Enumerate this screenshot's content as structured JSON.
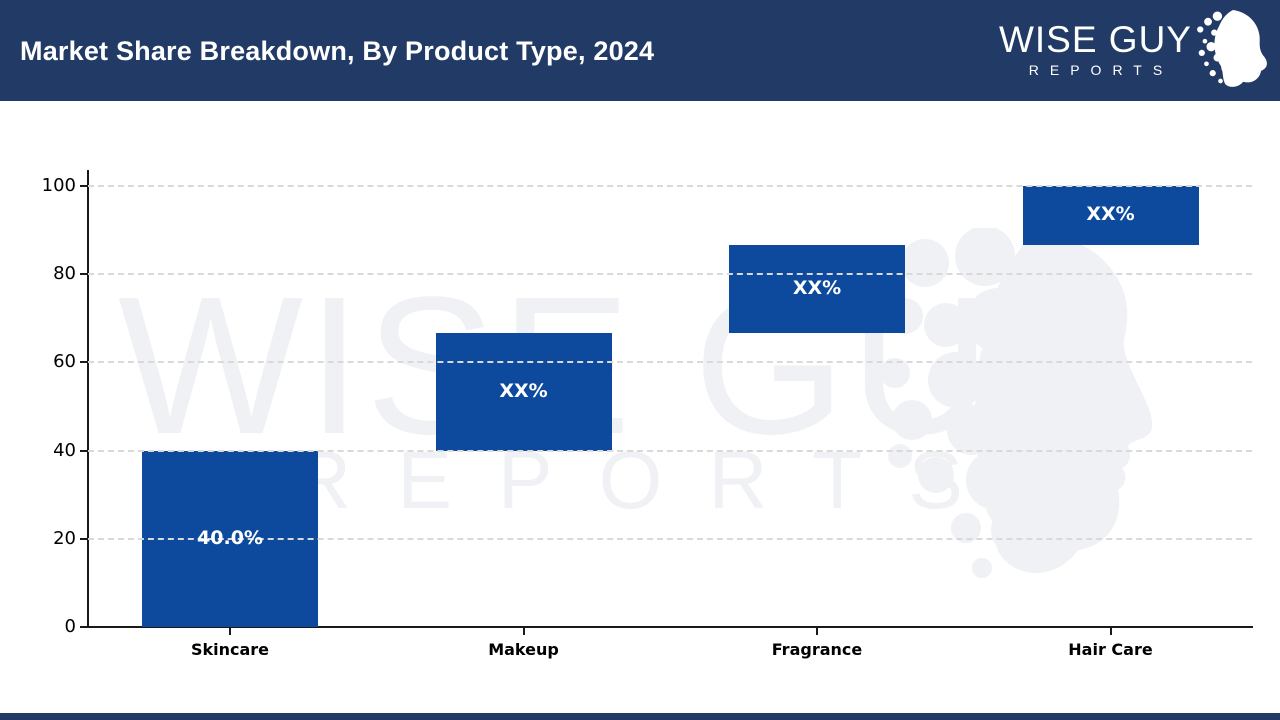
{
  "header": {
    "title": "Market Share Breakdown, By Product Type, 2024",
    "logo": {
      "wordmark": "WISE GUY",
      "subtext": "REPORTS"
    }
  },
  "watermark": {
    "wordmark": "WISE GUY",
    "subtext": "REPORTS"
  },
  "chart_data": {
    "type": "bar",
    "subtype": "waterfall",
    "title": "Market Share Breakdown, By Product Type, 2024",
    "categories": [
      "Skincare",
      "Makeup",
      "Fragrance",
      "Hair Care"
    ],
    "segments": [
      {
        "category": "Skincare",
        "start": 0,
        "end": 40,
        "label": "40.0%"
      },
      {
        "category": "Makeup",
        "start": 40,
        "end": 66.7,
        "label": "XX%"
      },
      {
        "category": "Fragrance",
        "start": 66.7,
        "end": 86.7,
        "label": "XX%"
      },
      {
        "category": "Hair Care",
        "start": 86.7,
        "end": 100,
        "label": "XX%"
      }
    ],
    "xlabel": "",
    "ylabel": "",
    "ylim": [
      0,
      100
    ],
    "yticks": [
      0,
      20,
      40,
      60,
      80,
      100
    ],
    "grid": "horizontal-dashed",
    "grid_over_bars": true,
    "legend": "none",
    "bar_color": "#0d4a9d",
    "bar_label_color": "#ffffff"
  },
  "colors": {
    "header_bg": "#213a66",
    "footer_bg": "#213a66",
    "bar": "#0d4a9d",
    "grid": "#d9d9d9",
    "axis": "#1a1a1a",
    "watermark": "#f0f1f4"
  }
}
